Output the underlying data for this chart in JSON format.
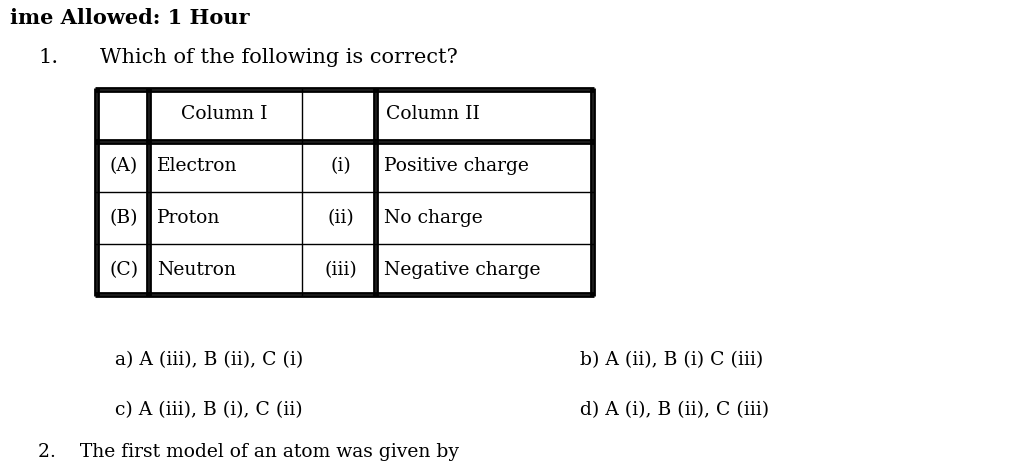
{
  "header_text": "ime Allowed: 1 Hour",
  "question_number": "1.",
  "question_text": "Which of the following is correct?",
  "table_headers": [
    "",
    "Column I",
    "",
    "Column II"
  ],
  "table_rows": [
    [
      "(A)",
      "Electron",
      "(i)",
      "Positive charge"
    ],
    [
      "(B)",
      "Proton",
      "(ii)",
      "No charge"
    ],
    [
      "(C)",
      "Neutron",
      "(iii)",
      "Negative charge"
    ]
  ],
  "opt_a": "a) A (iii), B (ii), C (i)",
  "opt_b": "b) A (ii), B (i) C (iii)",
  "opt_c": "c) A (iii), B (i), C (ii)",
  "opt_d": "d) A (i), B (ii), C (iii)",
  "bottom_text": "2.    The first model of an atom was given by",
  "bg_color": "#ffffff",
  "text_color": "#000000",
  "font_size": 13.5
}
